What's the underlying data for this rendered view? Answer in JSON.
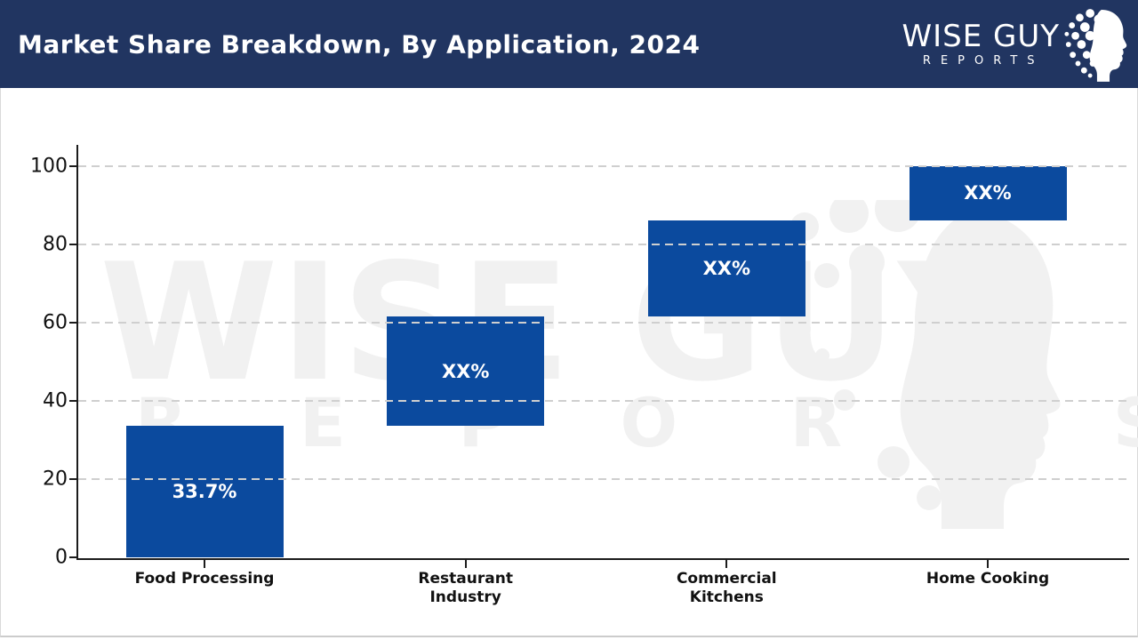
{
  "header": {
    "title": "Market Share Breakdown, By Application, 2024",
    "bg_color": "#213561",
    "logo": {
      "wordmark": "WISE GUY",
      "subtitle": "REPORTS"
    }
  },
  "watermark": {
    "line1": "WISE GUY",
    "line2": "R E P O R T S"
  },
  "chart_data": {
    "type": "bar",
    "variant": "waterfall (floating stacked segments)",
    "title": "Market Share Breakdown, By Application, 2024",
    "xlabel": "",
    "ylabel": "",
    "ylim": [
      0,
      100
    ],
    "yticks": [
      0,
      20,
      40,
      60,
      80,
      100
    ],
    "grid": "horizontal dashed gridlines, drawn over bars",
    "legend": "none",
    "bar_color": "#0b4a9e",
    "bar_label_color": "#ffffff",
    "categories": [
      "Food Processing",
      "Restaurant\nIndustry",
      "Commercial\nKitchens",
      "Home Cooking"
    ],
    "segments": [
      {
        "category": "Food Processing",
        "start": 0,
        "end": 33.7,
        "value": 33.7,
        "label": "33.7%"
      },
      {
        "category": "Restaurant Industry",
        "start": 33.7,
        "end": 61.5,
        "value": 27.8,
        "label": "XX%"
      },
      {
        "category": "Commercial Kitchens",
        "start": 61.5,
        "end": 86.2,
        "value": 24.7,
        "label": "XX%"
      },
      {
        "category": "Home Cooking",
        "start": 86.2,
        "end": 100,
        "value": 13.8,
        "label": "XX%"
      }
    ]
  }
}
